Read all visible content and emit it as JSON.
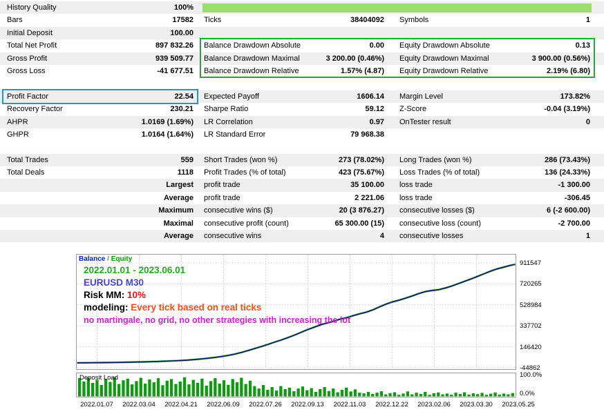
{
  "colors": {
    "row_shade": "#efefef",
    "quality_bar": "#9bde6e",
    "green_box": "#27a83d",
    "blue_box": "#2196d4",
    "balance_line": "#0a1a5c",
    "equity_line": "#18a018",
    "deposit_bar": "#0f9b0f",
    "grid_line": "#cccccc",
    "plot_border": "#999999",
    "legend_balance": "#0022cc",
    "legend_equity": "#00a000",
    "ann_period": "#22aa22",
    "ann_symbol": "#4646c8",
    "ann_risk_value": "#ee1111",
    "ann_modeling_value": "#ff4a11",
    "ann_note": "#cc22cc"
  },
  "stats": {
    "rows": [
      {
        "l": "History Quality",
        "lv": "100%",
        "bar": true,
        "bar_pct": 100,
        "shade": true
      },
      {
        "l": "Bars",
        "lv": "17582",
        "m": "Ticks",
        "mv": "38404092",
        "r": "Symbols",
        "rv": "1",
        "shade": false
      },
      {
        "l": "Initial Deposit",
        "lv": "100.00",
        "m": "",
        "mv": "",
        "r": "",
        "rv": "",
        "shade": true
      },
      {
        "l": "Total Net Profit",
        "lv": "897 832.26",
        "m": "Balance Drawdown Absolute",
        "mv": "0.00",
        "r": "Equity Drawdown Absolute",
        "rv": "0.13",
        "shade": false
      },
      {
        "l": "Gross Profit",
        "lv": "939 509.77",
        "m": "Balance Drawdown Maximal",
        "mv": "3 200.00 (0.46%)",
        "r": "Equity Drawdown Maximal",
        "rv": "3 900.00 (0.56%)",
        "shade": true
      },
      {
        "l": "Gross Loss",
        "lv": "-41 677.51",
        "m": "Balance Drawdown Relative",
        "mv": "1.57% (4.87)",
        "r": "Equity Drawdown Relative",
        "rv": "2.19% (6.80)",
        "shade": false
      },
      {
        "spacer": true
      },
      {
        "l": "Profit Factor",
        "lv": "22.54",
        "m": "Expected Payoff",
        "mv": "1606.14",
        "r": "Margin Level",
        "rv": "173.82%",
        "shade": true
      },
      {
        "l": "Recovery Factor",
        "lv": "230.21",
        "m": "Sharpe Ratio",
        "mv": "59.12",
        "r": "Z-Score",
        "rv": "-0.04 (3.19%)",
        "shade": false
      },
      {
        "l": "AHPR",
        "lv": "1.0169 (1.69%)",
        "m": "LR Correlation",
        "mv": "0.97",
        "r": "OnTester result",
        "rv": "0",
        "shade": true
      },
      {
        "l": "GHPR",
        "lv": "1.0164 (1.64%)",
        "m": "LR Standard Error",
        "mv": "79 968.38",
        "r": "",
        "rv": "",
        "shade": false
      },
      {
        "spacer": true
      },
      {
        "l": "Total Trades",
        "lv": "559",
        "m": "Short Trades (won %)",
        "mv": "273 (78.02%)",
        "r": "Long Trades (won %)",
        "rv": "286 (73.43%)",
        "shade": true
      },
      {
        "l": "Total Deals",
        "lv": "1118",
        "m": "Profit Trades (% of total)",
        "mv": "423 (75.67%)",
        "r": "Loss Trades (% of total)",
        "rv": "136 (24.33%)",
        "shade": false
      },
      {
        "l": "",
        "lv": "Largest",
        "m": "profit trade",
        "mv": "35 100.00",
        "r": "loss trade",
        "rv": "-1 300.00",
        "shade": true
      },
      {
        "l": "",
        "lv": "Average",
        "m": "profit trade",
        "mv": "2 221.06",
        "r": "loss trade",
        "rv": "-306.45",
        "shade": false
      },
      {
        "l": "",
        "lv": "Maximum",
        "m": "consecutive wins ($)",
        "mv": "20 (3 876.27)",
        "r": "consecutive losses ($)",
        "rv": "6 (-2 600.00)",
        "shade": true
      },
      {
        "l": "",
        "lv": "Maximal",
        "m": "consecutive profit (count)",
        "mv": "65 300.00 (15)",
        "r": "consecutive loss (count)",
        "rv": "-2 700.00",
        "shade": false
      },
      {
        "l": "",
        "lv": "Average",
        "m": "consecutive wins",
        "mv": "4",
        "r": "consecutive losses",
        "rv": "1",
        "shade": true
      }
    ]
  },
  "chart": {
    "legend": {
      "balance": "Balance",
      "sep": " / ",
      "equity": "Equity"
    },
    "annotations": {
      "period": "2022.01.01 - 2023.06.01",
      "symbol": "EURUSD M30",
      "risk_label": "Risk MM: ",
      "risk_value": "10%",
      "modeling_label": "modeling: ",
      "modeling_value": "Every tick based on real ticks",
      "strategy_note": "no martingale, no grid, no other strategies with increasing the lot"
    },
    "deposit_load_label": "Deposit Load",
    "deposit_axis": {
      "max": "100.0%",
      "min": "0.0%"
    }
  },
  "chart_data": {
    "type": "line",
    "title": "Balance / Equity",
    "ylim": [
      -44862,
      911547
    ],
    "y_tick_labels": [
      "911547",
      "720265",
      "528984",
      "337702",
      "146420",
      "-44862"
    ],
    "x_ticks": [
      "2022.01.07",
      "2022.03.04",
      "2022.04.21",
      "2022.06.09",
      "2022.07.26",
      "2022.09.13",
      "2022.11.03",
      "2022.12.22",
      "2023.02.06",
      "2023.03.30",
      "2023.05.25"
    ],
    "series": [
      {
        "name": "Balance",
        "points": [
          [
            0.0,
            100
          ],
          [
            0.03,
            900
          ],
          [
            0.06,
            2200
          ],
          [
            0.09,
            3800
          ],
          [
            0.12,
            5800
          ],
          [
            0.15,
            8400
          ],
          [
            0.18,
            12000
          ],
          [
            0.21,
            16500
          ],
          [
            0.23,
            20000
          ],
          [
            0.25,
            24500
          ],
          [
            0.27,
            30500
          ],
          [
            0.29,
            38000
          ],
          [
            0.31,
            47000
          ],
          [
            0.33,
            58000
          ],
          [
            0.345,
            68000
          ],
          [
            0.36,
            80000
          ],
          [
            0.375,
            95000
          ],
          [
            0.39,
            112000
          ],
          [
            0.405,
            130000
          ],
          [
            0.42,
            148000
          ],
          [
            0.435,
            167000
          ],
          [
            0.45,
            188000
          ],
          [
            0.465,
            207000
          ],
          [
            0.48,
            228000
          ],
          [
            0.495,
            251000
          ],
          [
            0.51,
            276000
          ],
          [
            0.525,
            301000
          ],
          [
            0.54,
            324000
          ],
          [
            0.55,
            338000
          ],
          [
            0.56,
            352000
          ],
          [
            0.575,
            368000
          ],
          [
            0.59,
            385000
          ],
          [
            0.6,
            398000
          ],
          [
            0.615,
            412000
          ],
          [
            0.63,
            430000
          ],
          [
            0.645,
            447000
          ],
          [
            0.66,
            462000
          ],
          [
            0.675,
            483000
          ],
          [
            0.69,
            510000
          ],
          [
            0.705,
            535000
          ],
          [
            0.72,
            556000
          ],
          [
            0.735,
            572000
          ],
          [
            0.75,
            590000
          ],
          [
            0.765,
            610000
          ],
          [
            0.78,
            632000
          ],
          [
            0.795,
            650000
          ],
          [
            0.81,
            660000
          ],
          [
            0.825,
            667000
          ],
          [
            0.84,
            682000
          ],
          [
            0.855,
            700000
          ],
          [
            0.87,
            722000
          ],
          [
            0.885,
            744000
          ],
          [
            0.9,
            766000
          ],
          [
            0.915,
            790000
          ],
          [
            0.93,
            814000
          ],
          [
            0.945,
            838000
          ],
          [
            0.96,
            858000
          ],
          [
            0.975,
            874000
          ],
          [
            0.99,
            890000
          ],
          [
            1.0,
            897932
          ]
        ]
      }
    ],
    "deposit_load_pct": [
      88,
      72,
      90,
      65,
      80,
      55,
      85,
      70,
      92,
      60,
      78,
      86,
      58,
      74,
      90,
      62,
      82,
      68,
      88,
      54,
      76,
      84,
      60,
      72,
      92,
      58,
      80,
      66,
      86,
      52,
      74,
      88,
      62,
      78,
      56,
      84,
      68,
      90,
      60,
      76,
      50,
      38,
      55,
      32,
      45,
      28,
      50,
      35,
      42,
      25,
      38,
      48,
      30,
      40,
      22,
      35,
      45,
      26,
      38,
      20,
      32,
      42,
      24,
      34,
      18,
      15,
      22,
      12,
      18,
      25,
      10,
      16,
      20,
      8,
      14,
      24,
      10,
      18,
      12,
      22,
      8,
      15,
      19,
      10,
      14,
      8,
      18,
      12,
      20,
      9,
      15,
      11,
      17,
      8,
      13,
      19,
      9,
      14,
      10,
      16
    ]
  }
}
